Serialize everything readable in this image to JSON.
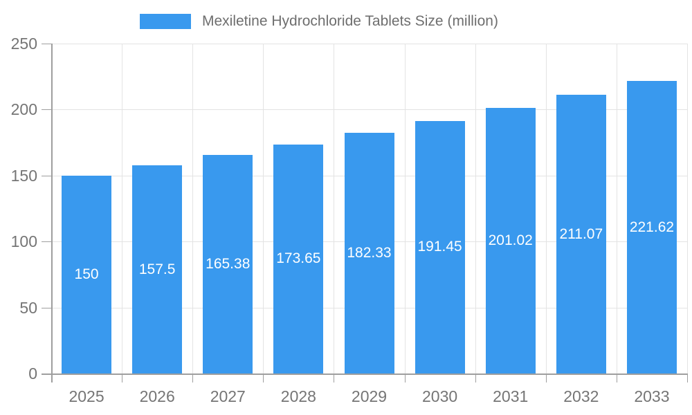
{
  "legend": {
    "label": "Mexiletine Hydrochloride Tablets Size (million)"
  },
  "colors": {
    "bar": "#3999EE",
    "grid": "#E3E3E3",
    "axis": "#9E9E9E",
    "tick_text": "#757575",
    "bar_label_text": "#FFFFFF",
    "legend_text": "#6E6E6E",
    "background": "#FFFFFF"
  },
  "chart_data": {
    "type": "bar",
    "title": "Mexiletine Hydrochloride Tablets Size (million)",
    "categories": [
      "2025",
      "2026",
      "2027",
      "2028",
      "2029",
      "2030",
      "2031",
      "2032",
      "2033"
    ],
    "values": [
      150,
      157.5,
      165.38,
      173.65,
      182.33,
      191.45,
      201.02,
      211.07,
      221.62
    ],
    "value_labels": [
      "150",
      "157.5",
      "165.38",
      "173.65",
      "182.33",
      "191.45",
      "201.02",
      "211.07",
      "221.62"
    ],
    "xlabel": "",
    "ylabel": "",
    "ylim": [
      0,
      250
    ],
    "y_ticks": [
      0,
      50,
      100,
      150,
      200,
      250
    ],
    "grid": true,
    "legend_position": "top",
    "series_name": "Mexiletine Hydrochloride Tablets Size (million)"
  }
}
